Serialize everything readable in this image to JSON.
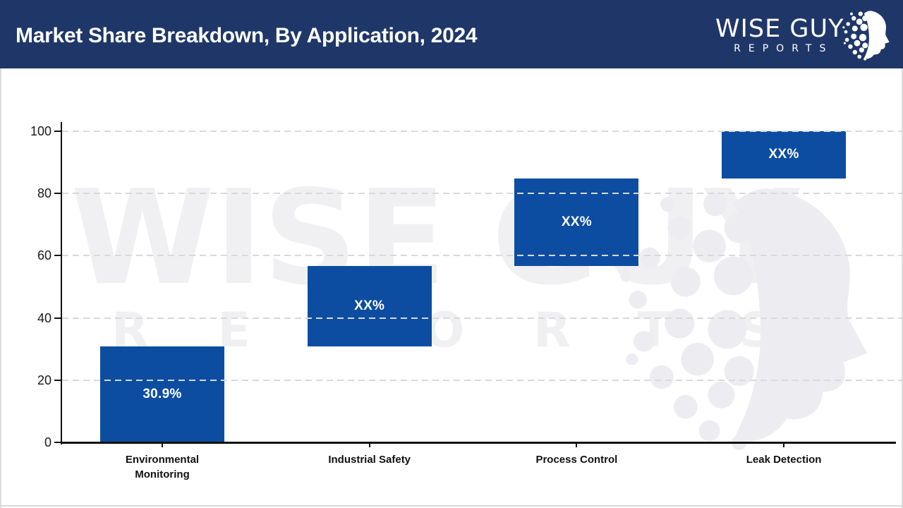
{
  "header": {
    "title": "Market Share Breakdown, By Application, 2024",
    "logo": {
      "line1": "WISE GUY",
      "line2": "REPORTS"
    }
  },
  "watermark": {
    "line1": "WISE GUY",
    "line2": "REPORTS"
  },
  "chart_data": {
    "type": "bar",
    "subtype": "waterfall",
    "title": "Market Share Breakdown, By Application, 2024",
    "categories": [
      "Environmental Monitoring",
      "Industrial Safety",
      "Process Control",
      "Leak Detection"
    ],
    "series": [
      {
        "name": "Market Share",
        "segments": [
          {
            "category": "Environmental Monitoring",
            "start": 0,
            "end": 30.9,
            "label": "30.9%"
          },
          {
            "category": "Industrial Safety",
            "start": 30.9,
            "end": 56.7,
            "label": "XX%"
          },
          {
            "category": "Process Control",
            "start": 56.7,
            "end": 84.9,
            "label": "XX%"
          },
          {
            "category": "Leak Detection",
            "start": 84.9,
            "end": 100,
            "label": "XX%"
          }
        ]
      }
    ],
    "xlabel": "",
    "ylabel": "",
    "ylim": [
      0,
      100
    ],
    "y_ticks": [
      0,
      20,
      40,
      60,
      80,
      100
    ],
    "grid": {
      "axis": "y",
      "style": "dashed",
      "color": "#D9D9D9",
      "above_bars": true
    },
    "legend": "none",
    "bar_color": "#0C4DA2",
    "bar_label_color": "#FFFFFF"
  },
  "colors": {
    "header_bg": "#1F3768",
    "content_bg": "#FFFFFF",
    "bar": "#0C4DA2",
    "grid": "#D9D9D9",
    "axis": "#111111",
    "tick_label": "#1A1A1A",
    "watermark": "#F0F0F3",
    "title_text": "#FFFFFF"
  }
}
